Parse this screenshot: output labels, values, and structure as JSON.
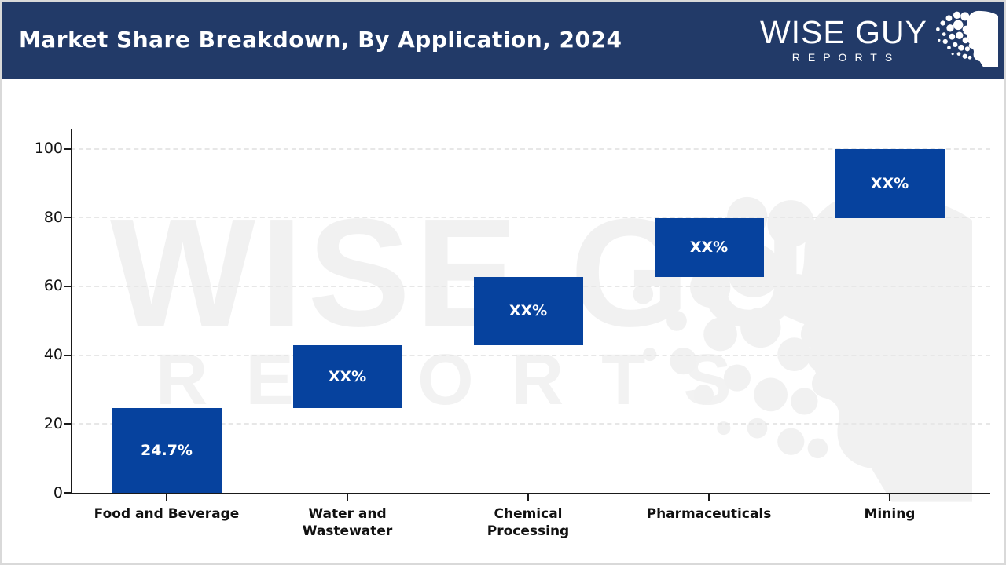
{
  "header": {
    "title": "Market Share Breakdown, By Application, 2024",
    "logo": {
      "line1": "WISE GUY",
      "line2": "REPORTS",
      "face_icon": "dot-face-profile-icon"
    }
  },
  "watermark": {
    "line1": "WISE GUY",
    "line2": "REPORTS"
  },
  "colors": {
    "header_bg": "#223a68",
    "bar": "#06429e",
    "bar_label": "#ffffff",
    "grid": "#e7e7e7",
    "axis": "#1a1a1a",
    "watermark": "#f1f1f1",
    "page_border": "#d9d9d9"
  },
  "chart_data": {
    "type": "bar",
    "subtype": "waterfall-floating-bars",
    "title": "Market Share Breakdown, By Application, 2024",
    "categories": [
      "Food and Beverage",
      "Water and Wastewater",
      "Chemical Processing",
      "Pharmaceuticals",
      "Mining"
    ],
    "values": [
      24.7,
      18.1,
      20.0,
      17.1,
      20.1
    ],
    "segments": [
      {
        "category": "Food and Beverage",
        "start": 0,
        "end": 24.7,
        "label": "24.7%",
        "label_lines": [
          "Food and Beverage"
        ]
      },
      {
        "category": "Water and Wastewater",
        "start": 24.7,
        "end": 42.8,
        "label": "XX%",
        "label_lines": [
          "Water and",
          "Wastewater"
        ]
      },
      {
        "category": "Chemical Processing",
        "start": 42.8,
        "end": 62.8,
        "label": "XX%",
        "label_lines": [
          "Chemical",
          "Processing"
        ]
      },
      {
        "category": "Pharmaceuticals",
        "start": 62.8,
        "end": 79.9,
        "label": "XX%",
        "label_lines": [
          "Pharmaceuticals"
        ]
      },
      {
        "category": "Mining",
        "start": 79.9,
        "end": 100.0,
        "label": "XX%",
        "label_lines": [
          "Mining"
        ]
      }
    ],
    "yticks": [
      0,
      20,
      40,
      60,
      80,
      100
    ],
    "ylim": [
      0,
      105
    ],
    "xlabel": "",
    "ylabel": "",
    "grid": "horizontal-dashed",
    "legend": "none",
    "bar_color": "#06429e",
    "label_color": "#ffffff"
  }
}
